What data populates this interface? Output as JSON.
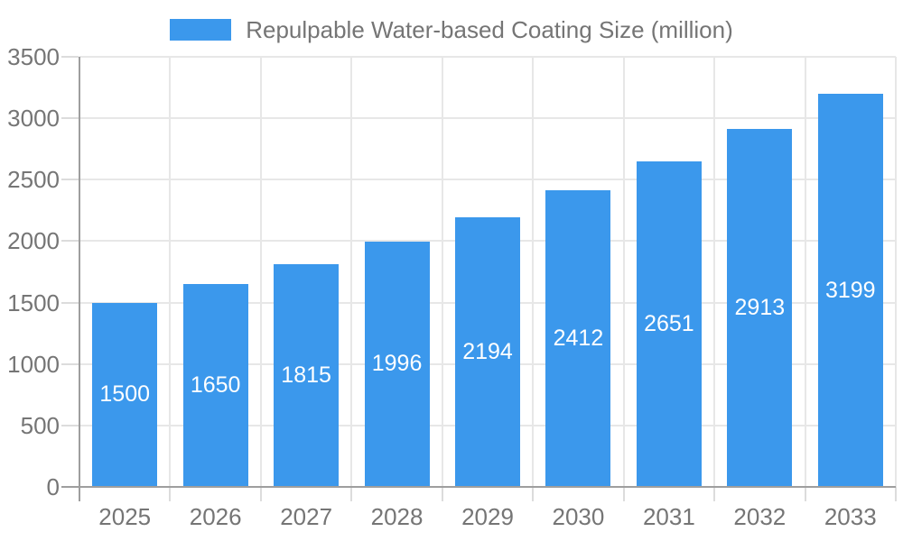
{
  "chart_data": {
    "type": "bar",
    "title": "",
    "legend": "Repulpable Water-based Coating Size (million)",
    "legend_position": "top",
    "categories": [
      "2025",
      "2026",
      "2027",
      "2028",
      "2029",
      "2030",
      "2031",
      "2032",
      "2033"
    ],
    "values": [
      1500,
      1650,
      1815,
      1996,
      2194,
      2412,
      2651,
      2913,
      3199
    ],
    "xlabel": "",
    "ylabel": "",
    "ylim": [
      0,
      3500
    ],
    "ytick_step": 500,
    "ytick_labels": [
      "0",
      "500",
      "1000",
      "1500",
      "2000",
      "2500",
      "3000",
      "3500"
    ],
    "grid": true,
    "bar_value_labels_shown": true,
    "colors": {
      "bar": "#3B98EC",
      "bar_label": "#FFFFFF",
      "axis_text": "#757575",
      "legend_text": "#757575",
      "gridline": "#E7E7E7",
      "tick": "#DCDCDC",
      "axis_line": "#9E9E9E",
      "background": "#FFFFFF"
    }
  }
}
